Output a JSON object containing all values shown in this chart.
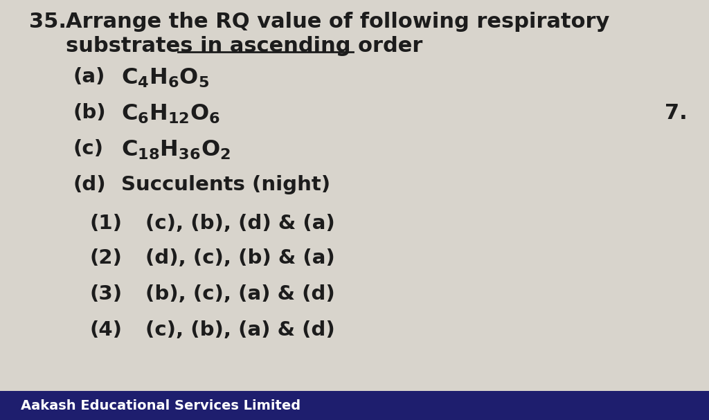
{
  "background_color": "#d8d4cc",
  "question_number": "35.",
  "title_line1": "Arrange the RQ value of following respiratory",
  "title_line2": "substrates in ascending order",
  "answers": [
    {
      "num": "(1)",
      "text": "(c), (b), (d) & (a)"
    },
    {
      "num": "(2)",
      "text": "(d), (c), (b) & (a)"
    },
    {
      "num": "(3)",
      "text": "(b), (c), (a) & (d)"
    },
    {
      "num": "(4)",
      "text": "(c), (b), (a) & (d)"
    }
  ],
  "side_number": "7.",
  "footer_text": "Aakash Educational Services Limited",
  "text_color": "#1c1c1c",
  "underline_color": "#1c1c1c",
  "footer_bg": "#1e1e6e",
  "title_fontsize": 22,
  "label_fontsize": 21,
  "formula_fontsize": 21,
  "answer_fontsize": 21,
  "side_fontsize": 22
}
